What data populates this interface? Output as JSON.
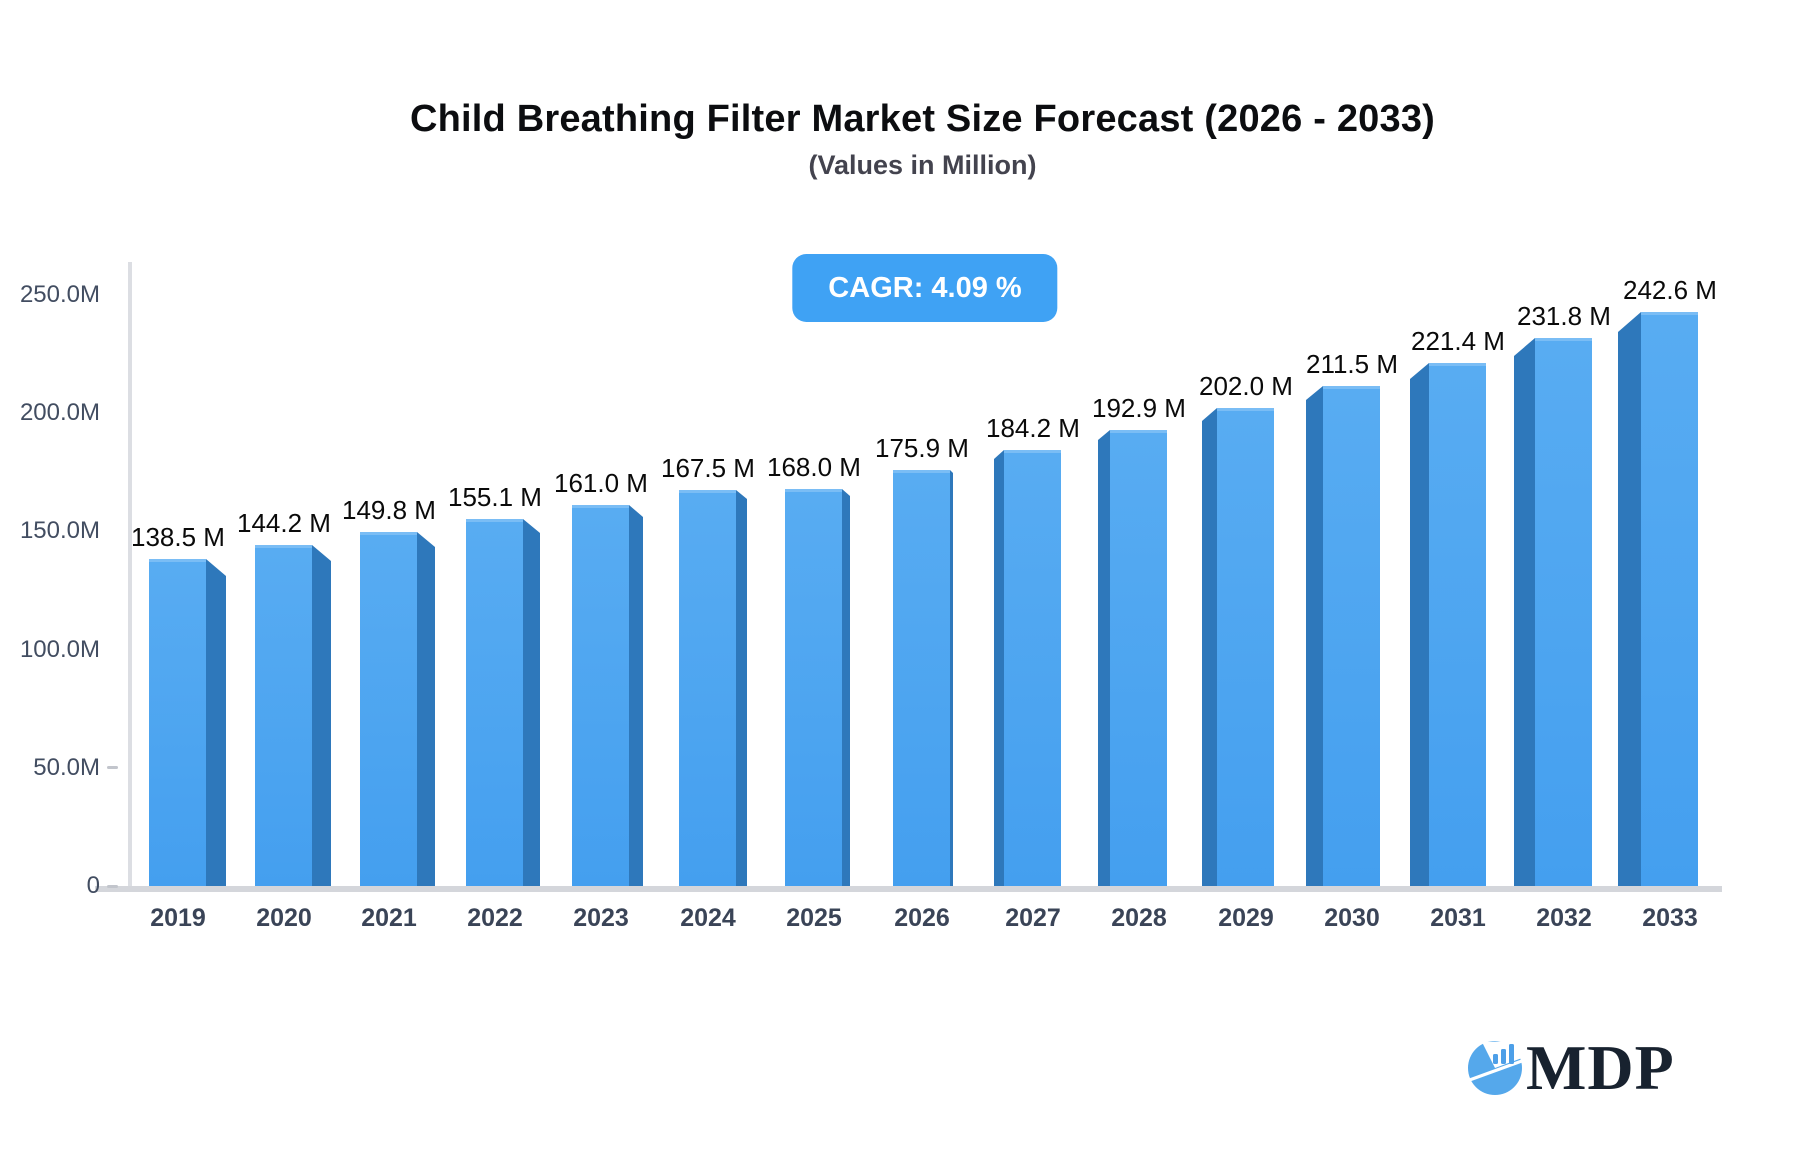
{
  "title": "Child Breathing Filter Market Size Forecast (2026 - 2033)",
  "subtitle": "(Values in Million)",
  "cagr_badge": {
    "label": "CAGR: 4.09 %"
  },
  "logo": {
    "text": "MDP",
    "icon": "pie-bar-chart-icon"
  },
  "colors": {
    "bar_face": "#4aa3f0",
    "bar_face_highlight": "#7abdf5",
    "bar_side": "#2e78bb",
    "badge_bg": "#3fa2f4",
    "axis_line": "#d4d6db",
    "title_text": "#0c0d10",
    "subtitle_text": "#43434e",
    "tick_text": "#424d61",
    "year_text": "#3a4457",
    "value_text": "#0a0a0a",
    "logo_blue": "#55a8eb",
    "logo_navy": "#18222f"
  },
  "chart_data": {
    "type": "bar",
    "title": "Child Breathing Filter Market Size Forecast (2026 - 2033)",
    "subtitle": "(Values in Million)",
    "cagr_percent": 4.09,
    "unit": "Million",
    "categories": [
      "2019",
      "2020",
      "2021",
      "2022",
      "2023",
      "2024",
      "2025",
      "2026",
      "2027",
      "2028",
      "2029",
      "2030",
      "2031",
      "2032",
      "2033"
    ],
    "values": [
      138.5,
      144.2,
      149.8,
      155.1,
      161.0,
      167.5,
      168.0,
      175.9,
      184.2,
      192.9,
      202.0,
      211.5,
      221.4,
      231.8,
      242.6
    ],
    "value_labels": [
      "138.5 M",
      "144.2 M",
      "149.8 M",
      "155.1 M",
      "161.0 M",
      "167.5 M",
      "168.0 M",
      "175.9 M",
      "184.2 M",
      "192.9 M",
      "202.0 M",
      "211.5 M",
      "221.4 M",
      "231.8 M",
      "242.6 M"
    ],
    "xlabel": "",
    "ylabel": "",
    "ylim": [
      0,
      250
    ],
    "grid": false,
    "legend": false,
    "yticks": [
      {
        "label": "250.0M",
        "value": 250,
        "dash": false
      },
      {
        "label": "200.0M",
        "value": 200,
        "dash": false
      },
      {
        "label": "150.0M",
        "value": 150,
        "dash": false
      },
      {
        "label": "100.0M",
        "value": 100,
        "dash": false
      },
      {
        "label": "50.0M",
        "value": 50,
        "dash": true
      },
      {
        "label": "0",
        "value": 0,
        "dash": true
      }
    ]
  }
}
